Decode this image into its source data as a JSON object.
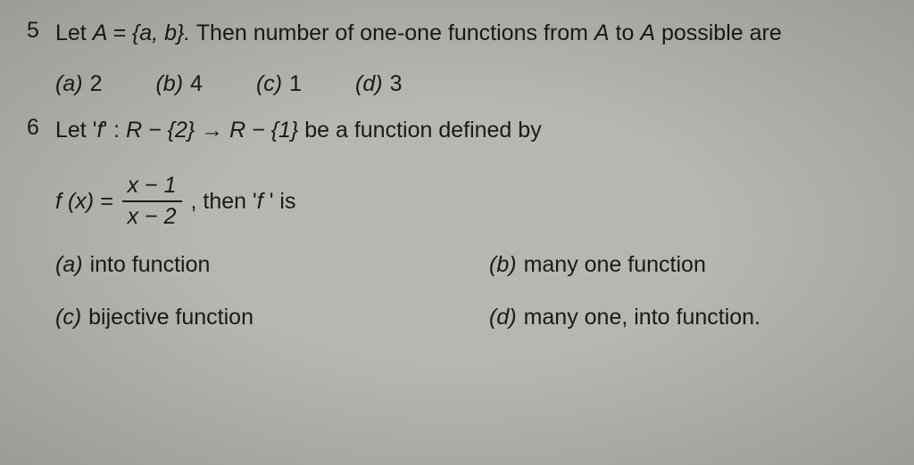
{
  "background_color": "#b8b6b0",
  "text_color": "#1a1a1a",
  "font_size_body": 25,
  "q5": {
    "number": "5",
    "text_pre": "Let ",
    "set_def": "A = {a, b}.",
    "text_post": " Then number of one-one functions from ",
    "var1": "A",
    "text_to": " to ",
    "var2": "A",
    "text_end": " possible are",
    "options": {
      "a": {
        "label": "(a)",
        "value": "2"
      },
      "b": {
        "label": "(b)",
        "value": "4"
      },
      "c": {
        "label": "(c)",
        "value": "1"
      },
      "d": {
        "label": "(d)",
        "value": "3"
      }
    }
  },
  "q6": {
    "number": "6",
    "text_pre": "Let '",
    "var_f": "f",
    "text_mid": "' : ",
    "domain": "R − {2} → R − {1}",
    "text_post": " be a function defined by",
    "formula": {
      "fx": "f (x) = ",
      "numerator": "x − 1",
      "denominator": "x − 2",
      "then_pre": ", then '",
      "var_f2": "f ",
      "then_post": "' is"
    },
    "options": {
      "a": {
        "label": "(a)",
        "value": "into function"
      },
      "b": {
        "label": "(b)",
        "value": "many one function"
      },
      "c": {
        "label": "(c)",
        "value": "bijective function"
      },
      "d": {
        "label": "(d)",
        "value": "many one, into function."
      }
    }
  }
}
